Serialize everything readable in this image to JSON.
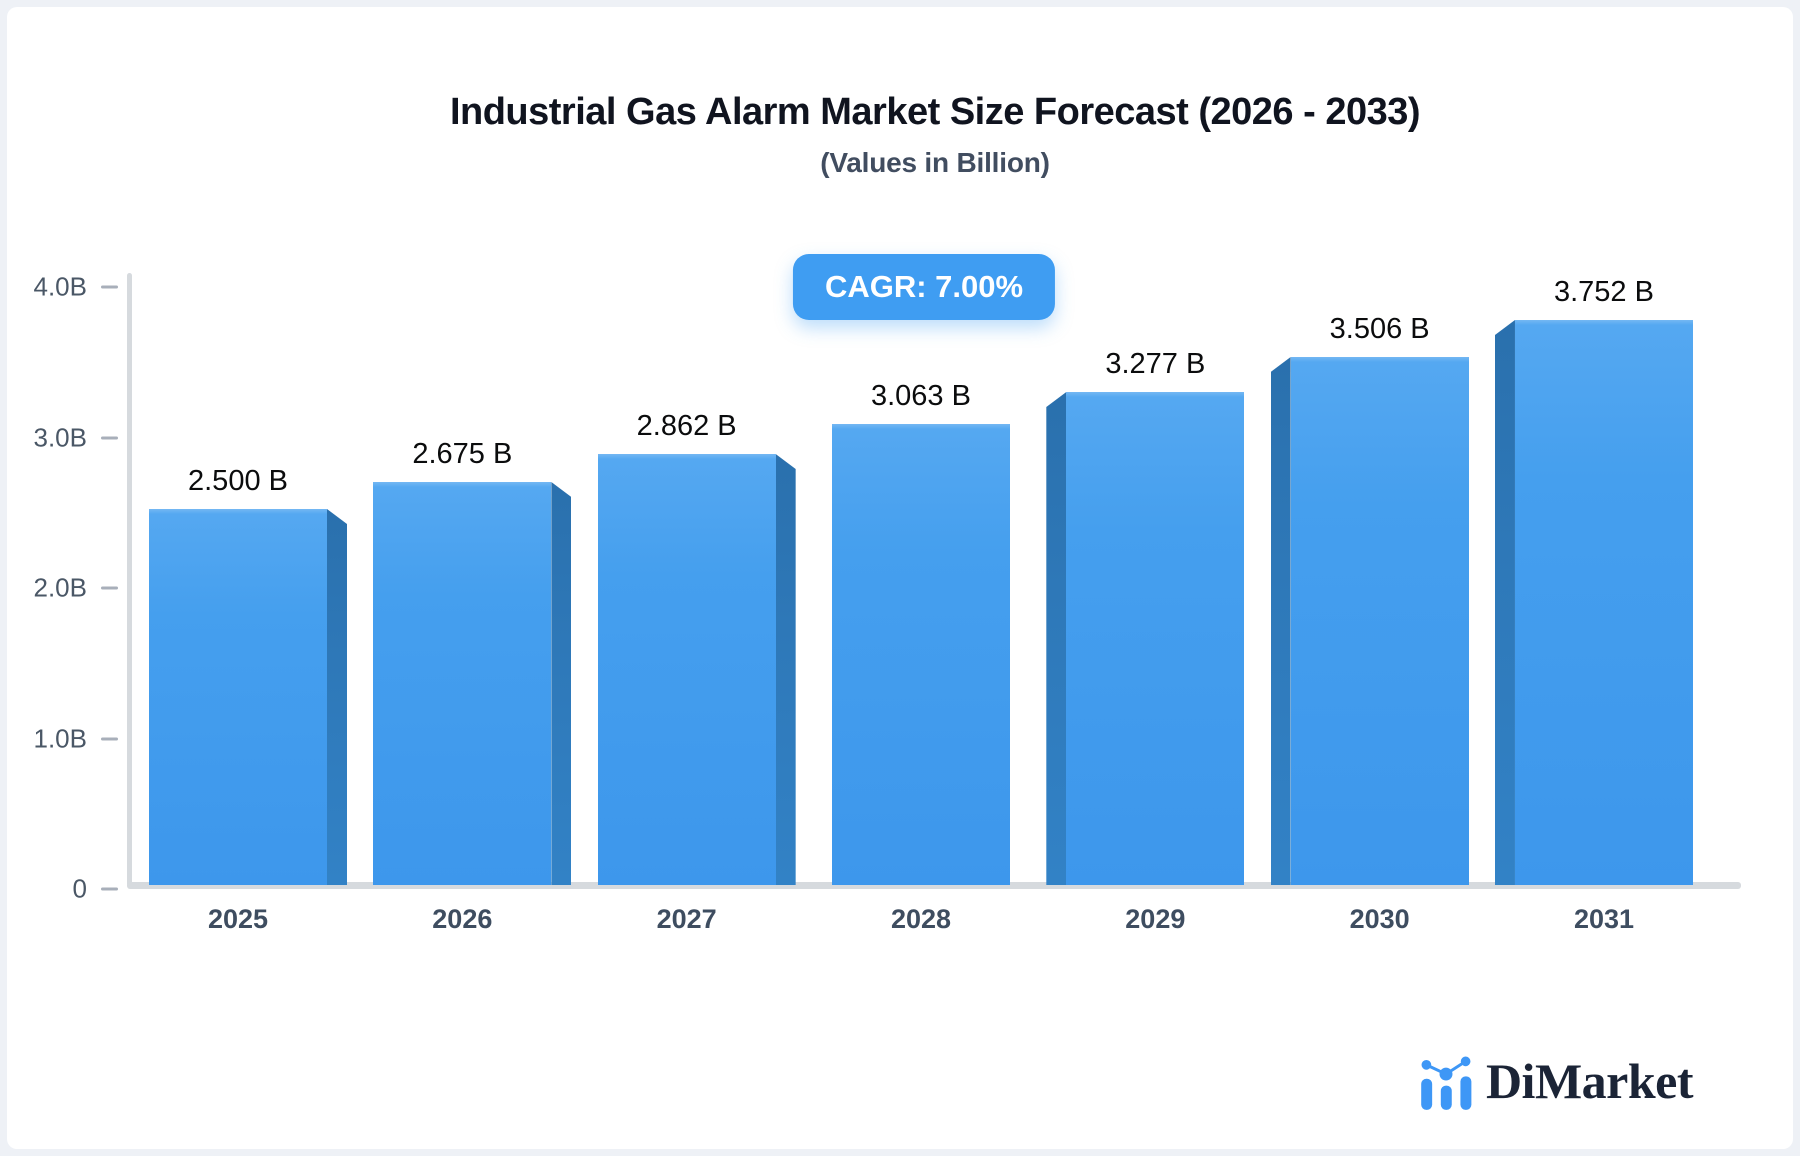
{
  "page": {
    "background_color": "#eef1f6",
    "card_background_color": "#ffffff"
  },
  "header": {
    "title": "Industrial Gas Alarm Market Size Forecast (2026 - 2033)",
    "subtitle": "(Values in Billion)"
  },
  "badge": {
    "label": "CAGR: 7.00%",
    "background_color": "#3f9df2",
    "text_color": "#ffffff"
  },
  "chart_data": {
    "type": "bar",
    "title": "Industrial Gas Alarm Market Size Forecast (2026 - 2033)",
    "subtitle": "(Values in Billion)",
    "unit": "Billion",
    "categories": [
      "2025",
      "2026",
      "2027",
      "2028",
      "2029",
      "2030",
      "2031"
    ],
    "values": [
      2.5,
      2.675,
      2.862,
      3.063,
      3.277,
      3.506,
      3.752
    ],
    "value_labels": [
      "2.500 B",
      "2.675 B",
      "2.862 B",
      "3.063 B",
      "3.277 B",
      "3.506 B",
      "3.752 B"
    ],
    "ylim": [
      0,
      4
    ],
    "y_ticks": [
      {
        "value": 4,
        "label": "4.0B"
      },
      {
        "value": 3,
        "label": "3.0B"
      },
      {
        "value": 2,
        "label": "2.0B"
      },
      {
        "value": 1,
        "label": "1.0B"
      },
      {
        "value": 0,
        "label": "0"
      }
    ],
    "grid": false,
    "legend": "none",
    "annotation": "CAGR: 7.00%",
    "bar_face_color": "#459fee",
    "bar_side_color": "#2e78b8",
    "bar_3d_side_orientation": [
      "right",
      "right",
      "right",
      "none",
      "left",
      "left",
      "left"
    ]
  },
  "logo": {
    "text": "DiMarket",
    "icon": "bar-chart-logo-icon",
    "icon_color": "#3e97f6",
    "text_color": "#1b2436"
  }
}
